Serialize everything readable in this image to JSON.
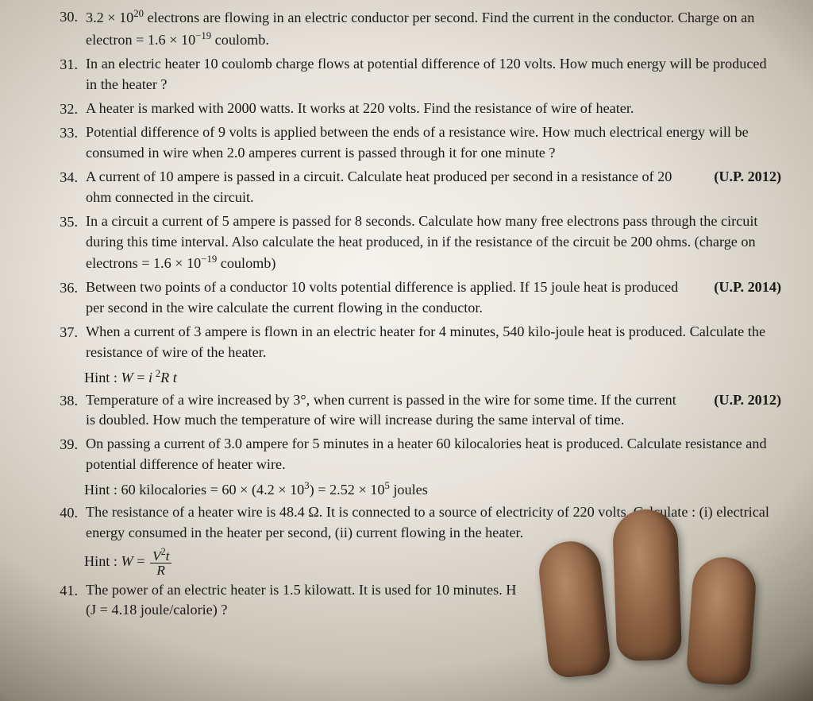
{
  "questions": [
    {
      "num": "30.",
      "html": "3.2 × 10<sup>20</sup> electrons are flowing in an electric conductor per second. Find the current in the conductor. Charge on an electron = 1.6 × 10<sup>−19</sup> coulomb."
    },
    {
      "num": "31.",
      "html": "In an electric heater 10 coulomb charge flows at potential difference of 120 volts. How much energy will be produced in the heater ?"
    },
    {
      "num": "32.",
      "html": "A heater is marked with 2000 watts. It works at 220 volts. Find the resistance of wire of heater."
    },
    {
      "num": "33.",
      "html": "Potential difference of 9 volts is applied between the ends of a resistance wire. How much electrical energy will be consumed in wire when 2.0 amperes current is passed through it for one minute ?"
    },
    {
      "num": "34.",
      "html": "A current of 10 ampere is passed in a circuit. Calculate heat produced per second in a resistance of 20 ohm connected in the circuit.",
      "source": "(U.P. 2012)"
    },
    {
      "num": "35.",
      "html": "In a circuit a current of 5 ampere is passed for 8 seconds. Calculate how many free electrons pass through the circuit during this time interval. Also calculate the heat produced, in if the resistance of the circuit be 200 ohms. (charge on electrons = 1.6 × 10<sup>−19</sup> coulomb)"
    },
    {
      "num": "36.",
      "html": "Between two points of a conductor 10 volts potential difference is applied. If 15 joule heat is produced per second in the wire calculate the current flowing in the conductor.",
      "source": "(U.P. 2014)"
    },
    {
      "num": "37.",
      "html": "When a current of 3 ampere is flown in an electric heater for 4 minutes, 540 kilo-joule heat is produced. Calculate the resistance of wire of the heater.",
      "hint_html": "Hint : <i>W</i> = <i>i</i>&thinsp;<sup>2</sup><i>R t</i>"
    },
    {
      "num": "38.",
      "html": "Temperature of a wire increased by 3°, when current is passed in the wire for some time. If the current is doubled. How much the temperature of wire will increase during the same interval of time.",
      "source": "(U.P. 2012)"
    },
    {
      "num": "39.",
      "html": "On passing a current of 3.0 ampere for 5 minutes in a heater 60 kilocalories heat is produced. Calculate resistance and potential difference of heater wire.",
      "hint_html": "Hint : 60 kilocalories = 60 × (4.2 × 10<sup>3</sup>) = 2.52 × 10<sup>5</sup> joules"
    },
    {
      "num": "40.",
      "html": "The resistance of a heater wire is 48.4 Ω. It is connected to a source of electricity of 220 volts. Calculate : (i) electrical energy consumed in the heater per second, (ii) current flowing in the heater.",
      "hint_html": "Hint : <i>W</i> = <span class=\"frac\"><span class=\"num\"><i>V</i><sup>2</sup><i>t</i></span><span class=\"den\"><i>R</i></span></span>"
    },
    {
      "num": "41.",
      "html": "The power of an electric heater is 1.5 kilowatt. It is used for 10 minutes. H&nbsp;&nbsp;&nbsp;&nbsp;&nbsp;&nbsp;&nbsp;&nbsp;&nbsp;&nbsp;&nbsp;&nbsp;h heat<br>(J = 4.18 joule/calorie) ?"
    }
  ]
}
